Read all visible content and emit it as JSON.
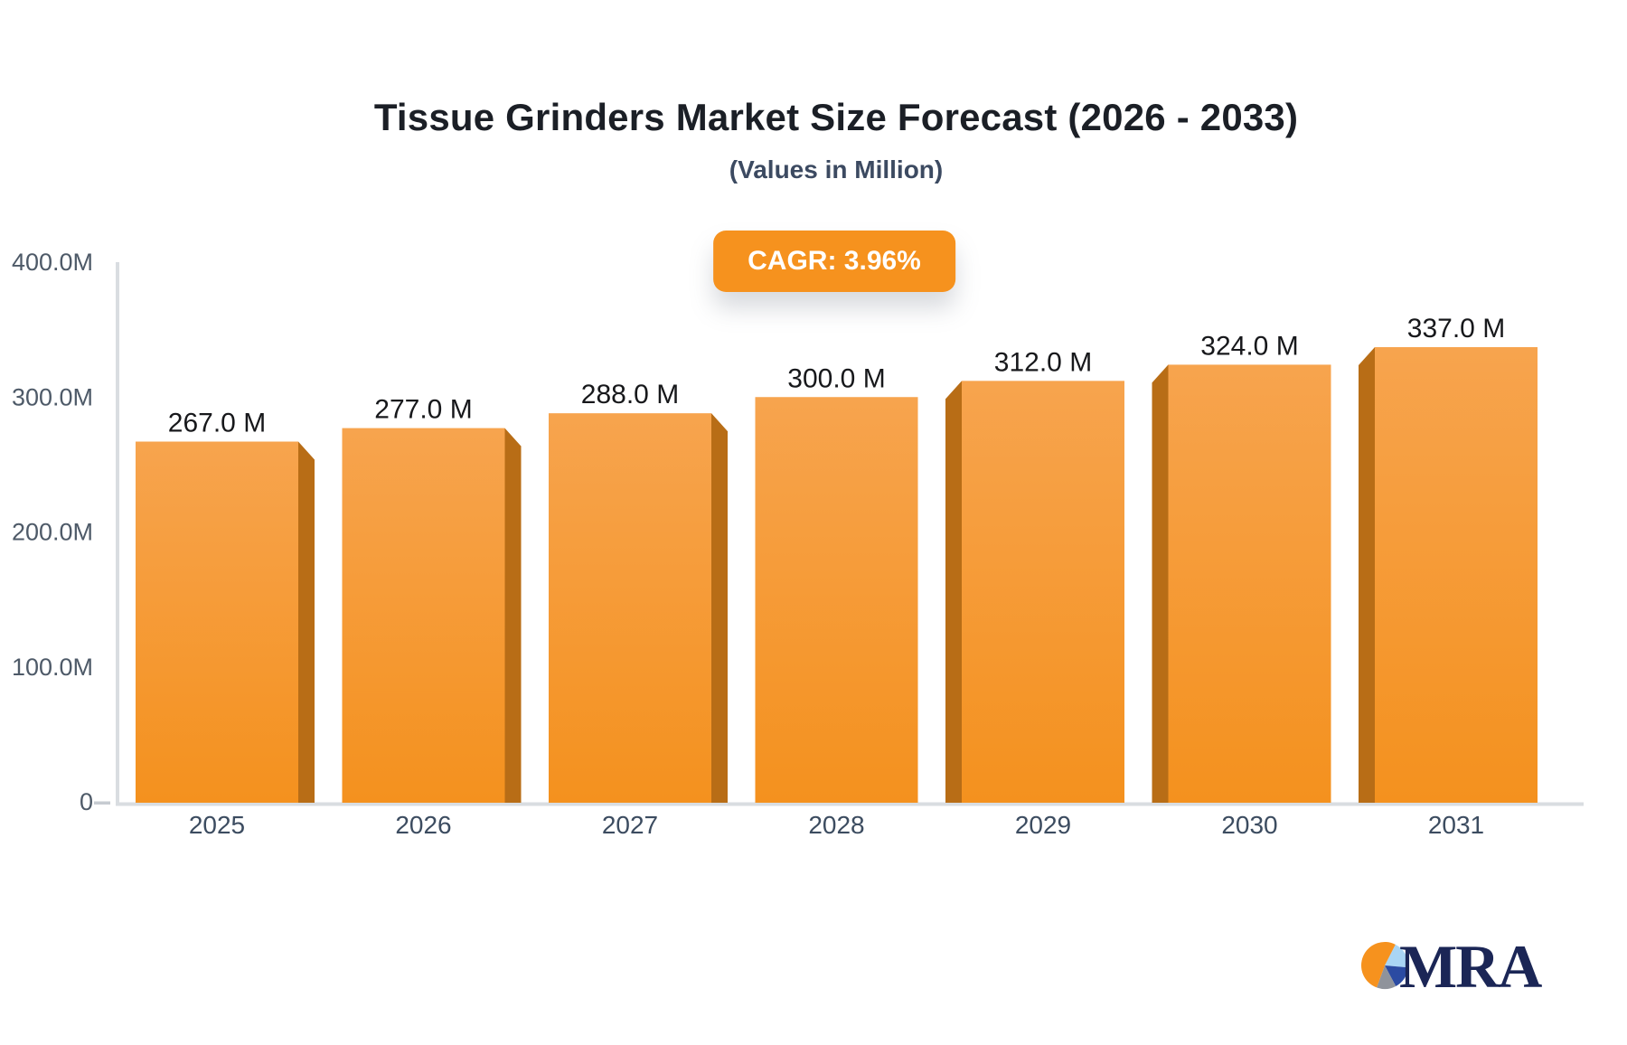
{
  "title": "Tissue Grinders Market Size Forecast (2026 - 2033)",
  "subtitle": "(Values in Million)",
  "badge": {
    "label": "CAGR: 3.96%",
    "bg_color": "#F6921E",
    "text_color": "#FFFFFF"
  },
  "chart_data": {
    "type": "bar",
    "title": "Tissue Grinders Market Size Forecast (2026 - 2033)",
    "subtitle": "(Values in Million)",
    "unit": "Million",
    "categories": [
      "2025",
      "2026",
      "2027",
      "2028",
      "2029",
      "2030",
      "2031"
    ],
    "values": [
      267.0,
      277.0,
      288.0,
      300.0,
      312.0,
      324.0,
      337.0
    ],
    "value_labels": [
      "267.0 M",
      "277.0 M",
      "288.0 M",
      "300.0 M",
      "312.0 M",
      "324.0 M",
      "337.0 M"
    ],
    "ylim": [
      0,
      400
    ],
    "ytick_values": [
      0,
      100,
      200,
      300,
      400
    ],
    "ytick_labels": [
      "0",
      "100.0M",
      "200.0M",
      "300.0M",
      "400.0M"
    ],
    "grid": false,
    "legend": "none",
    "colors": {
      "bar_face_top": "#F7A44E",
      "bar_face_bottom": "#F4911E",
      "bar_side": "#B86D16",
      "axis_line": "#D9DDE1",
      "zero_tick": "#C6CBD1",
      "ytick_label": "#4E5A68",
      "xtick_label": "#3C4C60",
      "value_label": "#17181B"
    }
  },
  "logo": {
    "text": "MRA",
    "text_color": "#1B2656",
    "pie_colors": {
      "orange": "#F6921E",
      "light_blue": "#A9D5F4",
      "dark_blue": "#2B4BA2",
      "gray": "#8F939B"
    }
  }
}
